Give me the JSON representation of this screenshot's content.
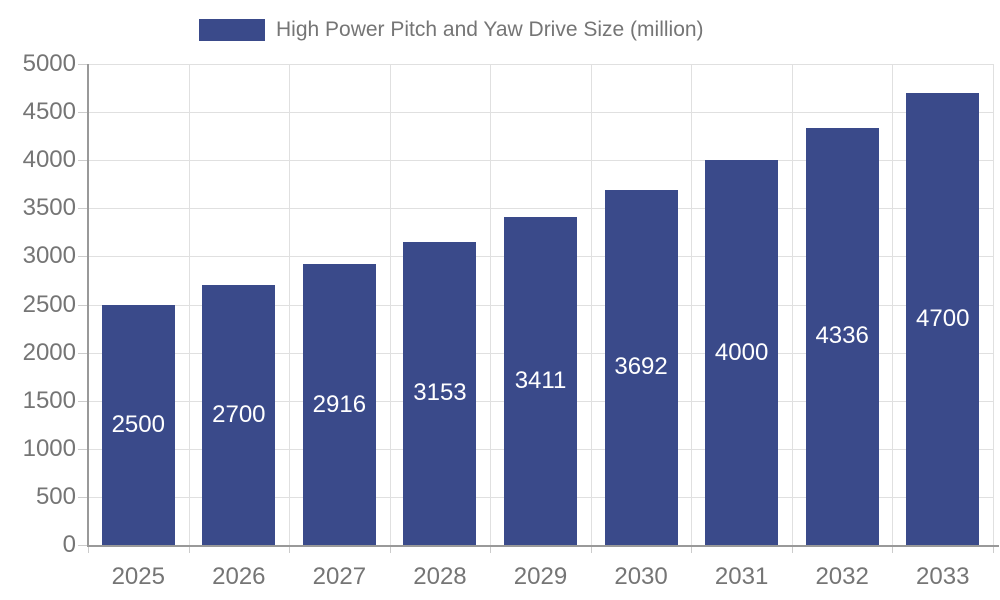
{
  "legend": {
    "label": "High Power Pitch and Yaw Drive Size (million)"
  },
  "chart_data": {
    "type": "bar",
    "title": "High Power Pitch and Yaw Drive Size (million)",
    "categories": [
      "2025",
      "2026",
      "2027",
      "2028",
      "2029",
      "2030",
      "2031",
      "2032",
      "2033"
    ],
    "values": [
      2500,
      2700,
      2916,
      3153,
      3411,
      3692,
      4000,
      4336,
      4700
    ],
    "xlabel": "",
    "ylabel": "",
    "ylim": [
      0,
      5000
    ],
    "ytick_step": 500,
    "grid": true,
    "legend_position": "top",
    "bar_labels_inside": true,
    "colors": {
      "bar": "#3A4A8A",
      "bar_label": "#FFFFFF",
      "axis_text": "#757575",
      "legend_text": "#757575",
      "gridline": "#E0E0E0",
      "tick": "#CCCCCC",
      "axis_line": "#999999",
      "background": "#FFFFFF"
    }
  }
}
